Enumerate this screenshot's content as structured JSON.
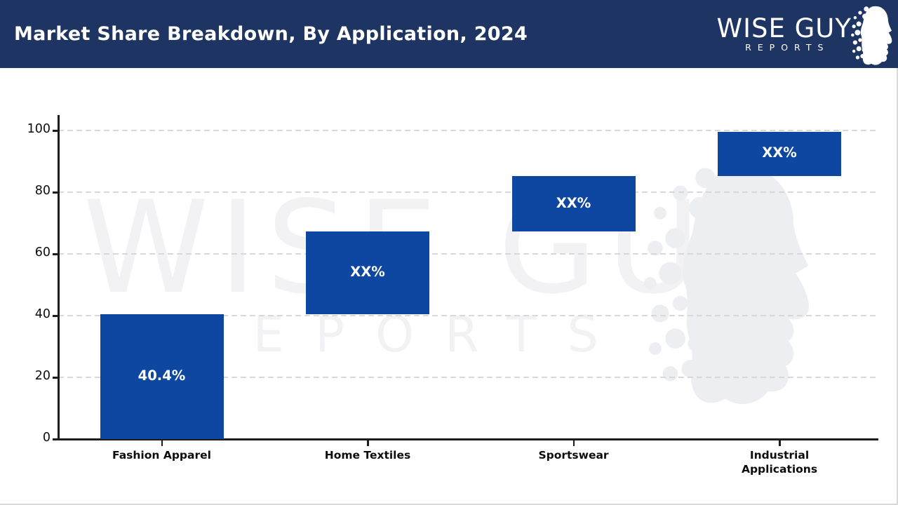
{
  "header": {
    "title": "Market Share Breakdown, By Application, 2024",
    "logo": {
      "name_line": "WISE GUY",
      "reports_line": "REPORTS"
    }
  },
  "watermark": {
    "name_line": "WISE GUY",
    "reports_line": "REPORTS"
  },
  "chart_data": {
    "type": "bar",
    "subtype": "floating-waterfall",
    "title": "Market Share Breakdown, By Application, 2024",
    "categories": [
      "Fashion Apparel",
      "Home Textiles",
      "Sportswear",
      "Industrial Applications"
    ],
    "segments": [
      {
        "category": "Fashion Apparel",
        "start": 0,
        "end": 40.4,
        "label": "40.4%"
      },
      {
        "category": "Home Textiles",
        "start": 40.4,
        "end": 67.3,
        "label": "XX%"
      },
      {
        "category": "Sportswear",
        "start": 67.3,
        "end": 85.2,
        "label": "XX%"
      },
      {
        "category": "Industrial Applications",
        "start": 85.2,
        "end": 99.6,
        "label": "XX%"
      }
    ],
    "yticks": [
      0,
      20,
      40,
      60,
      80,
      100
    ],
    "ylim": [
      0,
      104.8
    ],
    "xlabel": "",
    "ylabel": "",
    "grid": "horizontal-dashed",
    "legend": "none",
    "bar_color": "#0d47a1",
    "label_color": "#ffffff"
  },
  "colors": {
    "header_bg": "#1e3462",
    "bar_blue": "#0d47a1",
    "axis": "#1c1c1c",
    "grid": "#d8d8d8",
    "watermark": "#f2f2f5"
  }
}
